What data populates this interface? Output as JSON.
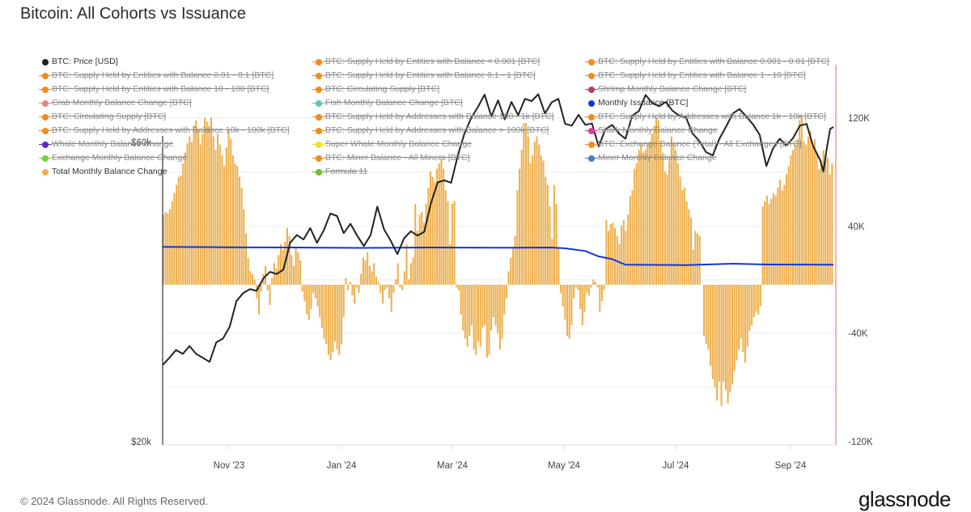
{
  "title": "Bitcoin: All Cohorts vs Issuance",
  "footer": "© 2024 Glassnode. All Rights Reserved.",
  "brand": "glassnode",
  "legend": {
    "col1": [
      {
        "label": "BTC: Price [USD]",
        "color": "#222222",
        "active": true
      },
      {
        "label": "BTC: Supply Held by Entities with Balance 0.01 - 0.1 [BTC]",
        "color": "#f08c1e",
        "active": false
      },
      {
        "label": "BTC: Supply Held by Entities with Balance 10 - 100 [BTC]",
        "color": "#f08c1e",
        "active": false
      },
      {
        "label": "Crab Monthly Balance Change [BTC]",
        "color": "#e8857a",
        "active": false
      },
      {
        "label": "BTC: Circulating Supply [BTC]",
        "color": "#f08c1e",
        "active": false
      },
      {
        "label": "BTC: Supply Held by Addresses with Balance 10k - 100k [BTC]",
        "color": "#f08c1e",
        "active": false
      },
      {
        "label": "Whale Monthly Balance Change",
        "color": "#5b2fb8",
        "active": false
      },
      {
        "label": "Exchange Monthly Balance Change",
        "color": "#7ccf3a",
        "active": false
      },
      {
        "label": "Total Monthly Balance Change",
        "color": "#edb04f",
        "active": true
      }
    ],
    "col2": [
      {
        "label": "BTC: Supply Held by Entities with Balance < 0.001 [BTC]",
        "color": "#f08c1e",
        "active": false
      },
      {
        "label": "BTC: Supply Held by Entities with Balance 0.1 - 1 [BTC]",
        "color": "#f08c1e",
        "active": false
      },
      {
        "label": "BTC: Circulating Supply [BTC]",
        "color": "#f08c1e",
        "active": false
      },
      {
        "label": "Fish Monthly Balance Change [BTC]",
        "color": "#5fc2c2",
        "active": false
      },
      {
        "label": "BTC: Supply Held by Addresses with Balance 100 - 1k [BTC]",
        "color": "#f08c1e",
        "active": false
      },
      {
        "label": "BTC: Supply Held by Addresses with Balance > 100k [BTC]",
        "color": "#f08c1e",
        "active": false
      },
      {
        "label": "Super Whale Monthly Balance Change",
        "color": "#f2de2e",
        "active": false
      },
      {
        "label": "BTC: Miner Balance - All Miners [BTC]",
        "color": "#f08c1e",
        "active": false
      },
      {
        "label": "Formula 11",
        "color": "#6fbf2a",
        "active": false
      }
    ],
    "col3": [
      {
        "label": "BTC: Supply Held by Entities with Balance 0.001 - 0.01 [BTC]",
        "color": "#f08c1e",
        "active": false
      },
      {
        "label": "BTC: Supply Held by Entities with Balance 1 - 10 [BTC]",
        "color": "#f08c1e",
        "active": false
      },
      {
        "label": "Shrimp Monthly Balance Change [BTC]",
        "color": "#b23c6e",
        "active": false
      },
      {
        "label": "Monthly Issuance [BTC]",
        "color": "#1435d6",
        "active": true
      },
      {
        "label": "BTC: Supply Held by Addresses with Balance 1k - 10k [BTC]",
        "color": "#f08c1e",
        "active": false
      },
      {
        "label": "Shark Monthly Balance Change",
        "color": "#e03ca0",
        "active": false
      },
      {
        "label": "BTC: Exchange Balance (Total) - All Exchanges [BTC]",
        "color": "#f08c1e",
        "active": false
      },
      {
        "label": "Miner Monthly Balance Change",
        "color": "#4a7cc9",
        "active": false
      }
    ]
  },
  "chart_data": {
    "type": "bar",
    "title": "Bitcoin: All Cohorts vs Issuance",
    "x_range": [
      "2023-09-25",
      "2024-09-24"
    ],
    "x_ticks": [
      "Nov '23",
      "Jan '24",
      "Mar '24",
      "May '24",
      "Jul '24",
      "Sep '24"
    ],
    "y_left": {
      "label": "BTC: Price [USD]",
      "scale": "log",
      "ticks": [
        "$20k",
        "$60k"
      ],
      "range": [
        20000,
        95000
      ]
    },
    "y_right": {
      "label": "BTC",
      "ticks": [
        "120K",
        "40K",
        "-40K",
        "-120K"
      ],
      "range": [
        -120000,
        160000
      ]
    },
    "colors": {
      "bars": "#edb04f",
      "price": "#222222",
      "issuance": "#1435d6",
      "right_axis_line": "#e9876e"
    },
    "series": [
      {
        "name": "Total Monthly Balance Change",
        "type": "bar",
        "unit": "BTC",
        "segments": [
          [
            [
              0,
              52000
            ],
            [
              8,
              80000
            ],
            [
              14,
              110000
            ],
            [
              22,
              120000
            ],
            [
              30,
              110000
            ],
            [
              38,
              100000
            ],
            [
              44,
              82000
            ],
            [
              50,
              60000
            ],
            [
              54,
              20000
            ],
            [
              58,
              8000
            ],
            [
              62,
              -10000
            ],
            [
              66,
              5000
            ]
          ],
          [
            [
              68,
              10000
            ],
            [
              74,
              30000
            ],
            [
              80,
              15000
            ],
            [
              84,
              -15000
            ]
          ]
        ],
        "points": [
          52000,
          54000,
          53000,
          56000,
          62000,
          68000,
          74000,
          80000,
          81000,
          90000,
          98000,
          105000,
          110000,
          106000,
          118000,
          122000,
          115000,
          104000,
          112000,
          124000,
          121000,
          118000,
          124000,
          110000,
          100000,
          112000,
          104000,
          96000,
          88000,
          102000,
          115000,
          108000,
          96000,
          90000,
          88000,
          80000,
          72000,
          56000,
          38000,
          20000,
          10000,
          8000,
          4000,
          -10000,
          -22000,
          -5000,
          8000,
          14000,
          -4000,
          -15000,
          5000,
          16000,
          12000,
          22000,
          30000,
          26000,
          32000,
          42000,
          36000,
          22000,
          14000,
          28000,
          24000,
          18000,
          -5000,
          -12000,
          -22000,
          -26000,
          -18000,
          -6000,
          -10000,
          -16000,
          -24000,
          -32000,
          -40000,
          -44000,
          -52000,
          -56000,
          -50000,
          -42000,
          -48000,
          -52000,
          -44000,
          -24000,
          5000,
          -4000,
          2000,
          -8000,
          -14000,
          -2000,
          -6000,
          8000,
          20000,
          18000,
          24000,
          14000,
          10000,
          16000,
          6000,
          2000,
          -6000,
          -14000,
          -4000,
          -2000,
          -10000,
          -20000,
          -6000,
          4000,
          16000,
          -2000,
          -4000,
          10000,
          30000,
          4000,
          16000,
          20000,
          60000,
          40000,
          52000,
          54000,
          46000,
          60000,
          72000,
          84000,
          80000,
          76000,
          86000,
          90000,
          94000,
          86000,
          70000,
          62000,
          30000,
          60000,
          62000,
          -2000,
          -4000,
          -22000,
          -34000,
          -40000,
          -46000,
          -38000,
          -30000,
          -48000,
          -52000,
          -42000,
          -46000,
          -32000,
          -30000,
          -54000,
          -52000,
          -34000,
          -24000,
          -30000,
          -36000,
          -48000,
          -40000,
          -22000,
          -10000,
          10000,
          20000,
          28000,
          36000,
          70000,
          86000,
          100000,
          120000,
          120000,
          110000,
          90000,
          96000,
          106000,
          110000,
          104000,
          96000,
          92000,
          80000,
          74000,
          58000,
          34000,
          74000,
          60000,
          28000,
          -6000,
          -16000,
          -26000,
          -38000,
          -40000,
          -30000,
          -10000,
          -2000,
          -4000,
          -18000,
          -30000,
          -20000,
          -6000,
          -8000,
          -2000,
          4000,
          2000,
          -2000,
          -20000,
          -12000,
          -4000,
          48000,
          40000,
          45000,
          46000,
          42000,
          36000,
          30000,
          44000,
          48000,
          40000,
          52000,
          66000,
          70000,
          86000,
          90000,
          100000,
          104000,
          98000,
          100000,
          104000,
          106000,
          112000,
          118000,
          124000,
          122000,
          106000,
          98000,
          84000,
          82000,
          92000,
          110000,
          104000,
          100000,
          90000,
          80000,
          70000,
          72000,
          62000,
          56000,
          50000,
          26000,
          40000,
          38000,
          36000,
          0,
          -38000,
          -44000,
          -48000,
          -60000,
          -70000,
          -76000,
          -86000,
          -72000,
          -90000,
          -72000,
          -78000,
          -88000,
          -80000,
          -74000,
          -64000,
          -56000,
          -48000,
          -40000,
          -50000,
          -58000,
          -46000,
          -34000,
          -30000,
          -24000,
          -20000,
          -22000,
          -16000,
          58000,
          62000,
          66000,
          60000,
          64000,
          68000,
          66000,
          72000,
          78000,
          70000,
          74000,
          82000,
          88000,
          96000,
          100000,
          104000,
          108000,
          122000,
          126000,
          106000,
          104000,
          110000,
          114000,
          102000,
          108000,
          98000,
          86000,
          92000,
          100000,
          96000,
          94000,
          82000,
          90000
        ]
      },
      {
        "name": "Monthly Issuance [BTC]",
        "type": "line",
        "unit": "BTC",
        "points": [
          [
            0,
            28000
          ],
          [
            0.55,
            27500
          ],
          [
            0.62,
            26000
          ],
          [
            0.64,
            27500
          ],
          [
            0.58,
            27000
          ],
          [
            0.6,
            27700
          ],
          [
            0.63,
            27500
          ],
          [
            0.66,
            25500
          ],
          [
            0.69,
            21500
          ],
          [
            0.72,
            19000
          ],
          [
            0.85,
            14500
          ],
          [
            0.9,
            14800
          ],
          [
            1.0,
            14000
          ]
        ]
      },
      {
        "name": "BTC: Price [USD]",
        "type": "line",
        "unit": "USD",
        "points": [
          [
            0,
            26500
          ],
          [
            0.01,
            27200
          ],
          [
            0.02,
            28000
          ],
          [
            0.03,
            27600
          ],
          [
            0.04,
            28400
          ],
          [
            0.05,
            27600
          ],
          [
            0.06,
            27200
          ],
          [
            0.07,
            26800
          ],
          [
            0.08,
            28800
          ],
          [
            0.09,
            29200
          ],
          [
            0.1,
            30500
          ],
          [
            0.11,
            33500
          ],
          [
            0.12,
            34500
          ],
          [
            0.13,
            35000
          ],
          [
            0.14,
            34800
          ],
          [
            0.15,
            36400
          ],
          [
            0.16,
            37300
          ],
          [
            0.17,
            37000
          ],
          [
            0.18,
            37600
          ],
          [
            0.19,
            41500
          ],
          [
            0.2,
            42700
          ],
          [
            0.21,
            42000
          ],
          [
            0.22,
            43800
          ],
          [
            0.23,
            41500
          ],
          [
            0.24,
            43400
          ],
          [
            0.25,
            46200
          ],
          [
            0.26,
            45800
          ],
          [
            0.27,
            43000
          ],
          [
            0.28,
            44500
          ],
          [
            0.29,
            42600
          ],
          [
            0.3,
            41000
          ],
          [
            0.31,
            42700
          ],
          [
            0.32,
            47400
          ],
          [
            0.33,
            43600
          ],
          [
            0.34,
            41800
          ],
          [
            0.35,
            39800
          ],
          [
            0.36,
            42200
          ],
          [
            0.37,
            43300
          ],
          [
            0.38,
            42600
          ],
          [
            0.39,
            43200
          ],
          [
            0.4,
            48000
          ],
          [
            0.41,
            51800
          ],
          [
            0.42,
            52200
          ],
          [
            0.43,
            51700
          ],
          [
            0.44,
            57200
          ],
          [
            0.45,
            62000
          ],
          [
            0.46,
            65600
          ],
          [
            0.47,
            68300
          ],
          [
            0.48,
            71500
          ],
          [
            0.49,
            66000
          ],
          [
            0.5,
            70000
          ],
          [
            0.51,
            65300
          ],
          [
            0.52,
            69600
          ],
          [
            0.53,
            66300
          ],
          [
            0.54,
            70400
          ],
          [
            0.55,
            69800
          ],
          [
            0.56,
            71600
          ],
          [
            0.57,
            66700
          ],
          [
            0.58,
            69500
          ],
          [
            0.59,
            70400
          ],
          [
            0.6,
            64200
          ],
          [
            0.61,
            63800
          ],
          [
            0.62,
            66400
          ],
          [
            0.63,
            64000
          ],
          [
            0.64,
            64300
          ],
          [
            0.65,
            59100
          ],
          [
            0.66,
            62900
          ],
          [
            0.67,
            64000
          ],
          [
            0.68,
            62000
          ],
          [
            0.69,
            60800
          ],
          [
            0.7,
            66200
          ],
          [
            0.71,
            67300
          ],
          [
            0.72,
            71400
          ],
          [
            0.73,
            69300
          ],
          [
            0.74,
            68500
          ],
          [
            0.75,
            69600
          ],
          [
            0.76,
            67400
          ],
          [
            0.77,
            66200
          ],
          [
            0.78,
            65800
          ],
          [
            0.79,
            62000
          ],
          [
            0.8,
            60300
          ],
          [
            0.81,
            57900
          ],
          [
            0.82,
            57200
          ],
          [
            0.83,
            60800
          ],
          [
            0.84,
            63600
          ],
          [
            0.85,
            66700
          ],
          [
            0.86,
            67800
          ],
          [
            0.87,
            66000
          ],
          [
            0.88,
            64100
          ],
          [
            0.89,
            61700
          ],
          [
            0.9,
            55000
          ],
          [
            0.91,
            58700
          ],
          [
            0.92,
            60800
          ],
          [
            0.93,
            59300
          ],
          [
            0.94,
            61000
          ],
          [
            0.95,
            63800
          ],
          [
            0.96,
            64200
          ],
          [
            0.97,
            59100
          ],
          [
            0.98,
            56300
          ],
          [
            0.985,
            53900
          ],
          [
            0.99,
            58600
          ],
          [
            0.995,
            63000
          ],
          [
            1.0,
            63500
          ]
        ],
        "x_unit": "fraction of time range"
      }
    ]
  }
}
